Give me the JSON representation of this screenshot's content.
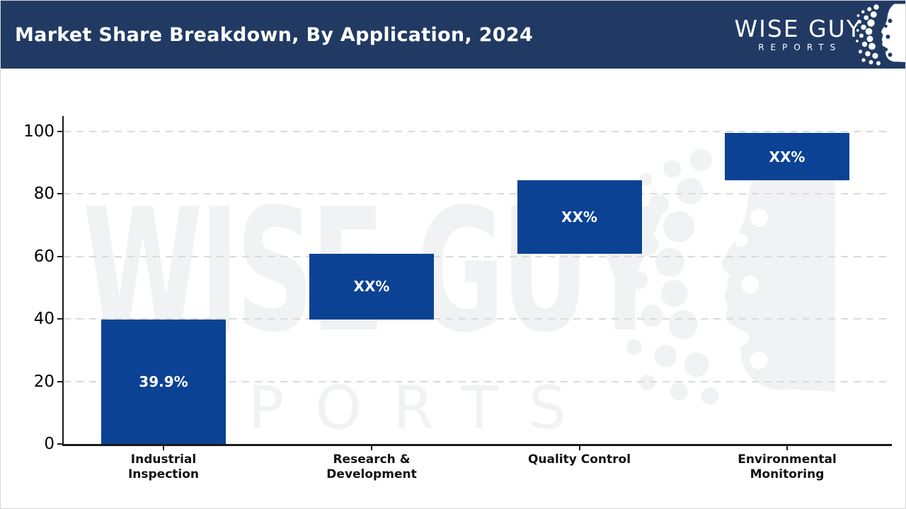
{
  "header": {
    "title": "Market Share Breakdown, By Application, 2024",
    "background_color": "#203a63",
    "logo": {
      "line1": "WISE GUY",
      "line2": "REPORTS"
    }
  },
  "watermark": {
    "line1": "WISE GUY",
    "line2": "REPORTS"
  },
  "chart_data": {
    "type": "bar",
    "variant": "waterfall",
    "title": "Market Share Breakdown, By Application, 2024",
    "xlabel": "",
    "ylabel": "",
    "categories": [
      {
        "lines": [
          "Industrial",
          "Inspection"
        ]
      },
      {
        "lines": [
          "Research &",
          "Development"
        ]
      },
      {
        "lines": [
          "Quality Control"
        ]
      },
      {
        "lines": [
          "Environmental",
          "Monitoring"
        ]
      }
    ],
    "segments": [
      {
        "name": "Industrial Inspection",
        "start": 0,
        "end": 39.9,
        "label": "39.9%"
      },
      {
        "name": "Research & Development",
        "start": 39.9,
        "end": 60.9,
        "label": "XX%"
      },
      {
        "name": "Quality Control",
        "start": 60.9,
        "end": 84.4,
        "label": "XX%"
      },
      {
        "name": "Environmental Monitoring",
        "start": 84.4,
        "end": 99.5,
        "label": "XX%"
      }
    ],
    "yticks": [
      0,
      20,
      40,
      60,
      80,
      100
    ],
    "ylim": [
      0,
      105
    ],
    "grid": {
      "axis": "y",
      "style": "dashed",
      "color": "#dadada"
    },
    "legend_position": "none",
    "colors": {
      "bar": "#0b4294",
      "bar_label": "#ffffff",
      "axis": "#1a1a1a",
      "tick_label": "#000000",
      "category_label": "#111111",
      "watermark": "#f1f2f4"
    }
  }
}
